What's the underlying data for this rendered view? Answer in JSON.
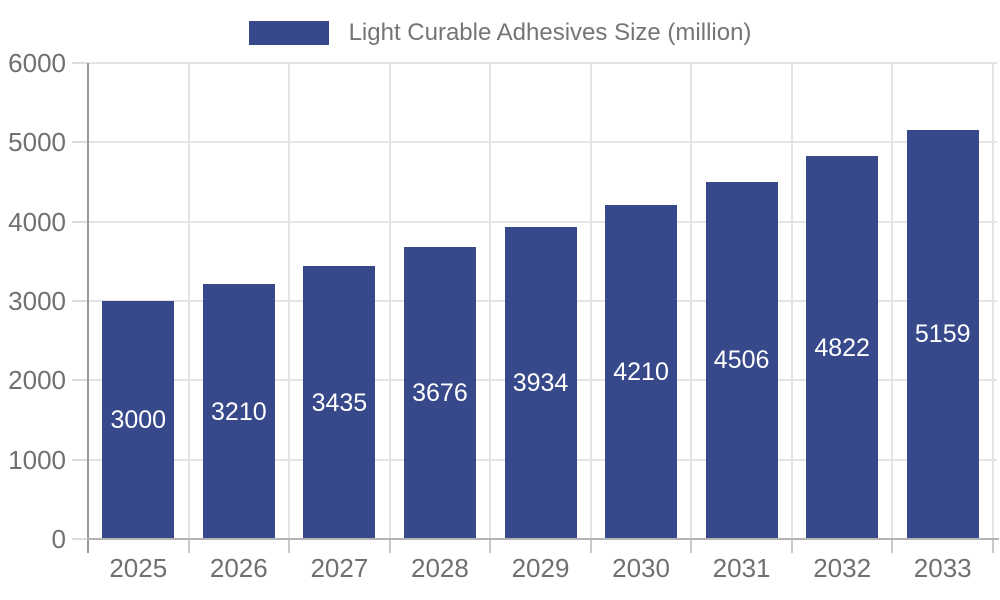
{
  "chart_data": {
    "type": "bar",
    "title": "Light Curable Adhesives Size (million)",
    "series": [
      {
        "name": "Light Curable Adhesives Size (million)",
        "values": [
          3000,
          3210,
          3435,
          3676,
          3934,
          4210,
          4506,
          4822,
          5159
        ]
      }
    ],
    "categories": [
      "2025",
      "2026",
      "2027",
      "2028",
      "2029",
      "2030",
      "2031",
      "2032",
      "2033"
    ],
    "xlabel": "",
    "ylabel": "",
    "ylim": [
      0,
      6000
    ],
    "yticks": [
      0,
      1000,
      2000,
      3000,
      4000,
      5000,
      6000
    ],
    "grid": true,
    "legend_position": "top-center",
    "bar_label_position": "inside-middle",
    "colors": {
      "bar": "#37498A",
      "bar_label": "#ffffff",
      "legend_text": "#757575",
      "axis_text": "#707070",
      "gridline": "#e4e4e4",
      "y_spine": "#999999",
      "x_axis_line": "#b3b3b3",
      "x_tick": "#c9c9c9",
      "y_tick": "#dcdcdc",
      "background": "#ffffff"
    }
  },
  "legend": {
    "items": [
      {
        "label": "Light Curable Adhesives Size (million)",
        "color": "#37498A"
      }
    ]
  }
}
